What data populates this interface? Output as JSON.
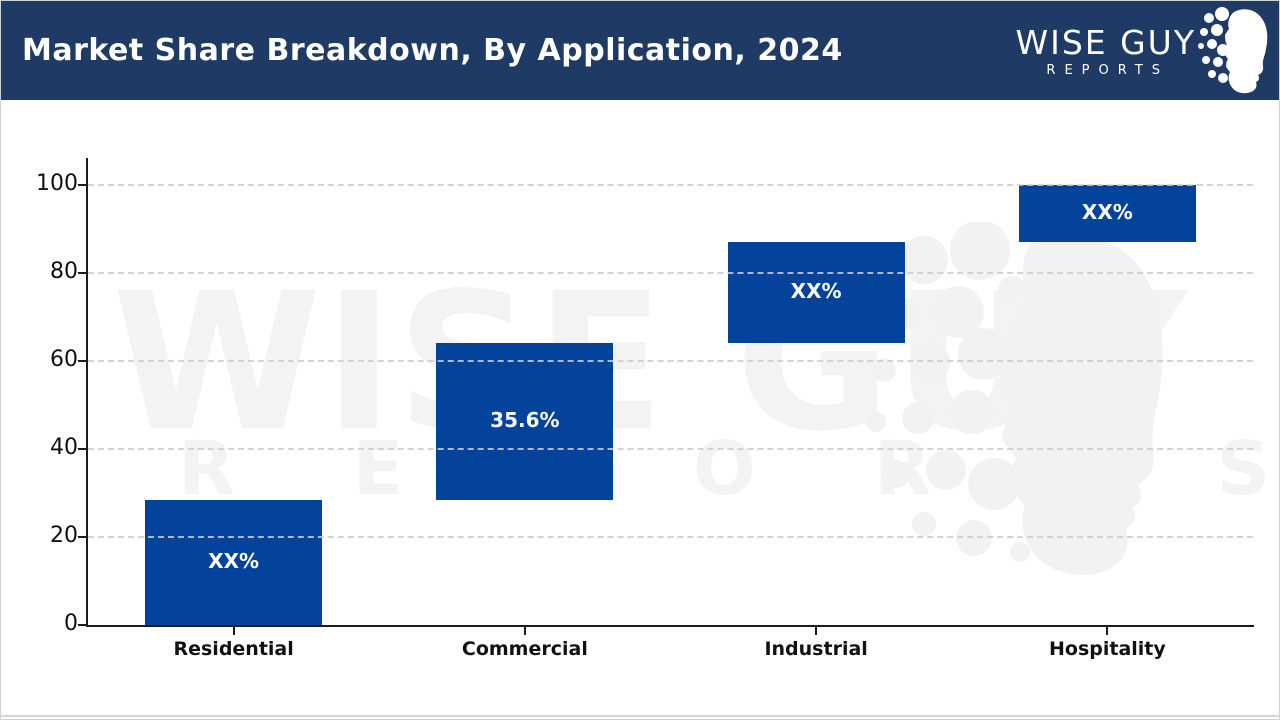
{
  "header": {
    "title": "Market Share Breakdown, By Application, 2024",
    "logo": {
      "line1": "WISE GUY",
      "line2": "REPORTS"
    }
  },
  "watermark": {
    "line1": "WISE GUY",
    "line2": "R E P O R T S"
  },
  "colors": {
    "header_bg": "#203a66",
    "bar": "#04439b",
    "grid": "#cdcdcd",
    "axis": "#1a1a1a",
    "watermark": "#f3f3f5",
    "label_text": "#ffffff"
  },
  "chart_data": {
    "type": "bar",
    "subtype": "waterfall-floating-bars",
    "title": "Market Share Breakdown, By Application, 2024",
    "categories": [
      "Residential",
      "Commercial",
      "Industrial",
      "Hospitality"
    ],
    "segments": [
      {
        "category": "Residential",
        "start": 0,
        "end": 28.4,
        "value": 28.4,
        "label": "XX%"
      },
      {
        "category": "Commercial",
        "start": 28.4,
        "end": 64.0,
        "value": 35.6,
        "label": "35.6%"
      },
      {
        "category": "Industrial",
        "start": 64.0,
        "end": 87.0,
        "value": 23.0,
        "label": "XX%"
      },
      {
        "category": "Hospitality",
        "start": 87.0,
        "end": 100.0,
        "value": 13.0,
        "label": "XX%"
      }
    ],
    "xlabel": "",
    "ylabel": "",
    "ylim": [
      0,
      106
    ],
    "yticks": [
      0,
      20,
      40,
      60,
      80,
      100
    ],
    "grid": "horizontal-dashed-over-bars",
    "legend": null,
    "bar_color": "#04439b",
    "value_labels_inside_bars": true
  }
}
